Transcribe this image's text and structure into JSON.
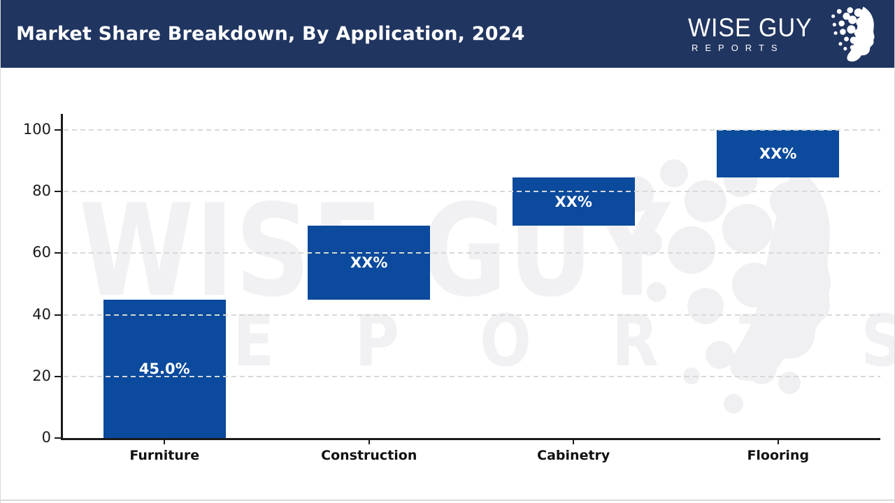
{
  "header": {
    "title": "Market Share Breakdown, By Application, 2024",
    "logo": {
      "line1": "WISE GUY",
      "line2": "REPORTS"
    }
  },
  "watermark": {
    "line1": "WISE GUY",
    "line2": "R E P O R T S"
  },
  "colors": {
    "header_bg": "#203560",
    "bar": "#0b4a9c",
    "grid": "#d8d8d8",
    "axis": "#1a1a1a",
    "bar_label": "#ffffff",
    "watermark": "#f1f1f3"
  },
  "chart_data": {
    "type": "bar",
    "subtype": "waterfall",
    "title": "Market Share Breakdown, By Application, 2024",
    "categories": [
      "Furniture",
      "Construction",
      "Cabinetry",
      "Flooring"
    ],
    "segments": [
      {
        "start": 0,
        "end": 45
      },
      {
        "start": 45,
        "end": 69
      },
      {
        "start": 69,
        "end": 84.5
      },
      {
        "start": 84.5,
        "end": 100
      }
    ],
    "values": [
      45.0,
      24.0,
      15.5,
      15.5
    ],
    "bar_labels": [
      "45.0%",
      "XX%",
      "XX%",
      "XX%"
    ],
    "yticks": [
      0,
      20,
      40,
      60,
      80,
      100
    ],
    "ylim": [
      0,
      105
    ],
    "xlabel": "",
    "ylabel": "",
    "grid": "horizontal-dashed",
    "legend": "none"
  }
}
